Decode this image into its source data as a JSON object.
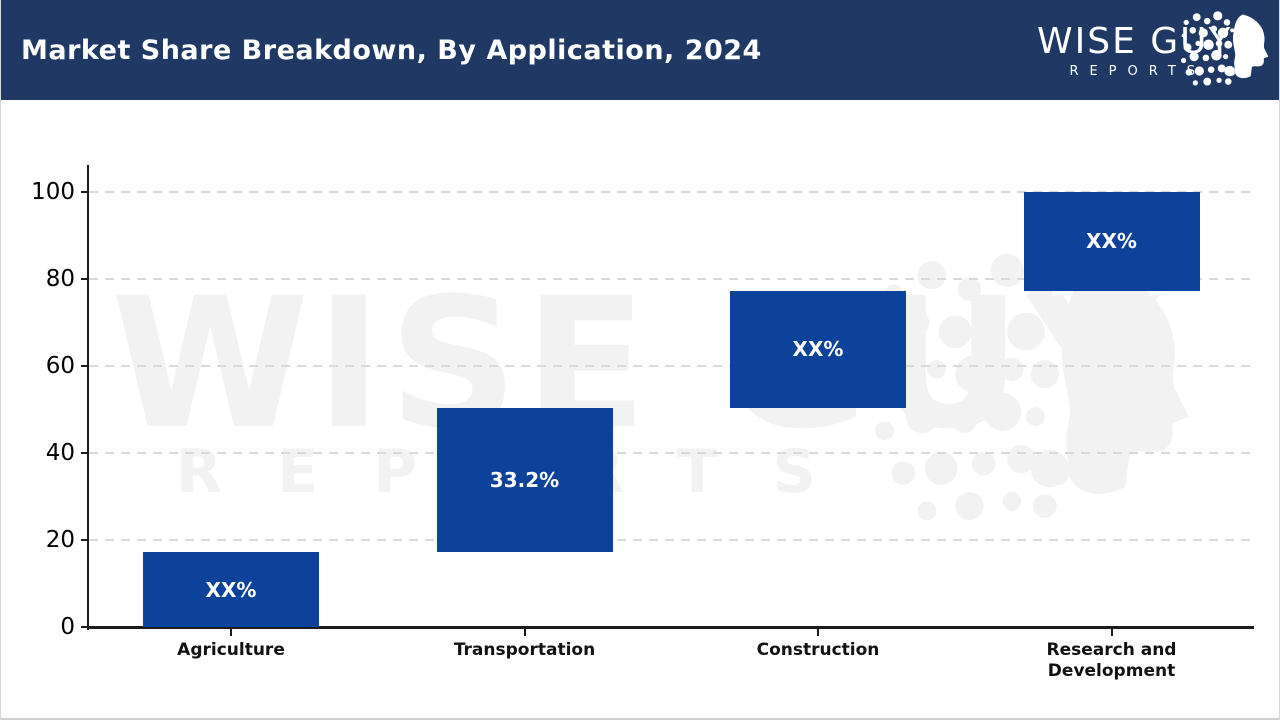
{
  "header": {
    "title": "Market Share Breakdown, By Application, 2024",
    "logo_line1": "WISE GUY",
    "logo_line2": "REPORTS"
  },
  "watermark": {
    "line1": "WISE GUY",
    "line2": "REPORTS"
  },
  "colors": {
    "header_bg": "#203864",
    "header_text": "#ffffff",
    "bar": "#0c4299",
    "bar_label": "#ffffff",
    "grid": "#d9d9d9",
    "axis": "#1c1c1c",
    "tick_label": "#000000",
    "watermark": "#f2f2f2"
  },
  "chart_data": {
    "type": "bar",
    "variant": "waterfall",
    "title": "Market Share Breakdown, By Application, 2024",
    "categories": [
      "Agriculture",
      "Transportation",
      "Construction",
      "Research and Development"
    ],
    "segments": [
      {
        "category": "Agriculture",
        "start": 0,
        "end": 17.2,
        "value_label": "XX%"
      },
      {
        "category": "Transportation",
        "start": 17.2,
        "end": 50.4,
        "value": 33.2,
        "value_label": "33.2%"
      },
      {
        "category": "Construction",
        "start": 50.4,
        "end": 77.3,
        "value_label": "XX%"
      },
      {
        "category": "Research and Development",
        "start": 77.3,
        "end": 100,
        "value_label": "XX%"
      }
    ],
    "ylim": [
      0,
      100
    ],
    "yticks": [
      0,
      20,
      40,
      60,
      80,
      100
    ],
    "xlabel": "",
    "ylabel": "",
    "grid": "horizontal-dashed",
    "legend": "none"
  }
}
